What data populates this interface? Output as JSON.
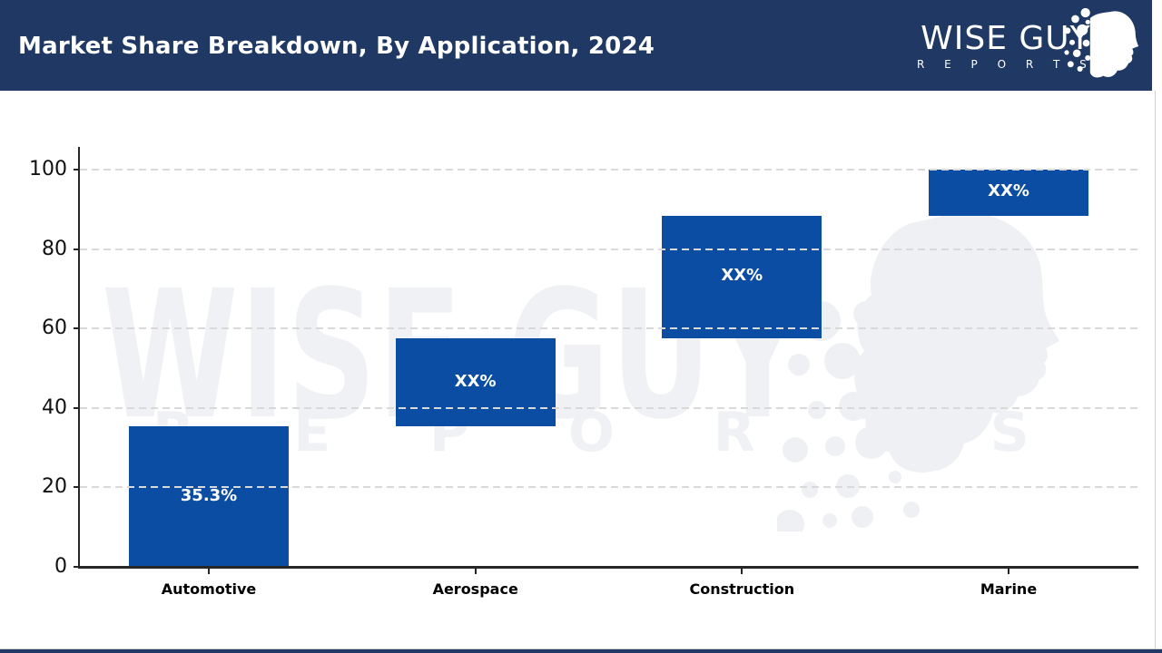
{
  "header": {
    "title": "Market Share Breakdown, By Application, 2024",
    "logo": {
      "wordmark": "WISE GUY",
      "subtext": "R E P O R T S"
    }
  },
  "watermark": {
    "wordmark": "WISE GUY",
    "subtext": "R E P O R T S"
  },
  "colors": {
    "header_navy": "#1f3864",
    "bar_blue": "#0b4da2",
    "gridline_gray": "#d9d9d9",
    "axis_black": "#262626",
    "watermark_gray": "#f0f1f4",
    "bar_label_white": "#ffffff"
  },
  "chart_data": {
    "type": "bar",
    "subtype": "waterfall",
    "title": "Market Share Breakdown, By Application, 2024",
    "categories": [
      "Automotive",
      "Aerospace",
      "Construction",
      "Marine"
    ],
    "segments": [
      {
        "category": "Automotive",
        "start": 0,
        "end": 35.3,
        "label": "35.3%"
      },
      {
        "category": "Aerospace",
        "start": 35.3,
        "end": 57.5,
        "label": "XX%"
      },
      {
        "category": "Construction",
        "start": 57.5,
        "end": 88.4,
        "label": "XX%"
      },
      {
        "category": "Marine",
        "start": 88.4,
        "end": 100,
        "label": "XX%"
      }
    ],
    "xlabel": "",
    "ylabel": "",
    "ylim": [
      0,
      100
    ],
    "yticks": [
      0,
      20,
      40,
      60,
      80,
      100
    ],
    "grid": "horizontal dashed",
    "legend": "none",
    "bar_color": "#0b4da2"
  }
}
